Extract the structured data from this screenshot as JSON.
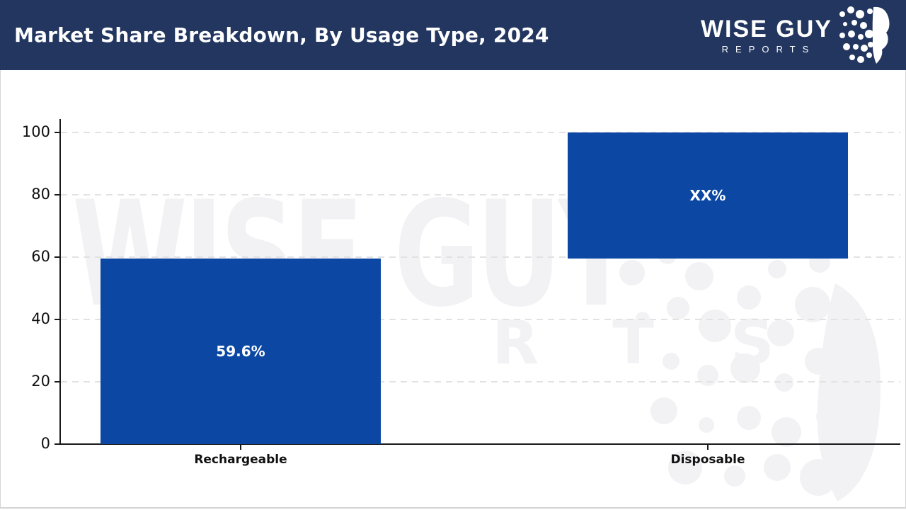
{
  "header": {
    "title": "Market Share Breakdown, By Usage Type, 2024",
    "logo": {
      "line1": "WISE GUY",
      "line2": "REPORTS"
    }
  },
  "watermark": {
    "main_text": "WISE GUY",
    "sub_text_visible": "RTS"
  },
  "chart_data": {
    "type": "bar",
    "subtype": "stacked-waterfall",
    "title": "Market Share Breakdown, By Usage Type, 2024",
    "categories": [
      "Rechargeable",
      "Disposable"
    ],
    "bars": [
      {
        "category": "Rechargeable",
        "start": 0,
        "end": 59.6,
        "label": "59.6%"
      },
      {
        "category": "Disposable",
        "start": 59.6,
        "end": 100,
        "label": "XX%"
      }
    ],
    "y_axis": {
      "ticks": [
        0,
        20,
        40,
        60,
        80,
        100
      ],
      "range": [
        0,
        104.5
      ]
    },
    "x_axis": {
      "tick_labels": [
        "Rechargeable",
        "Disposable"
      ]
    },
    "grid": {
      "horizontal": true,
      "style": "dashed"
    },
    "legend": "none",
    "colors": {
      "bar": "#0c48a3",
      "header_background": "#223660",
      "title_text": "#ffffff",
      "axis_text": "#111111",
      "gridline": "#e2e2e2",
      "watermark": "#f2f2f4"
    }
  }
}
